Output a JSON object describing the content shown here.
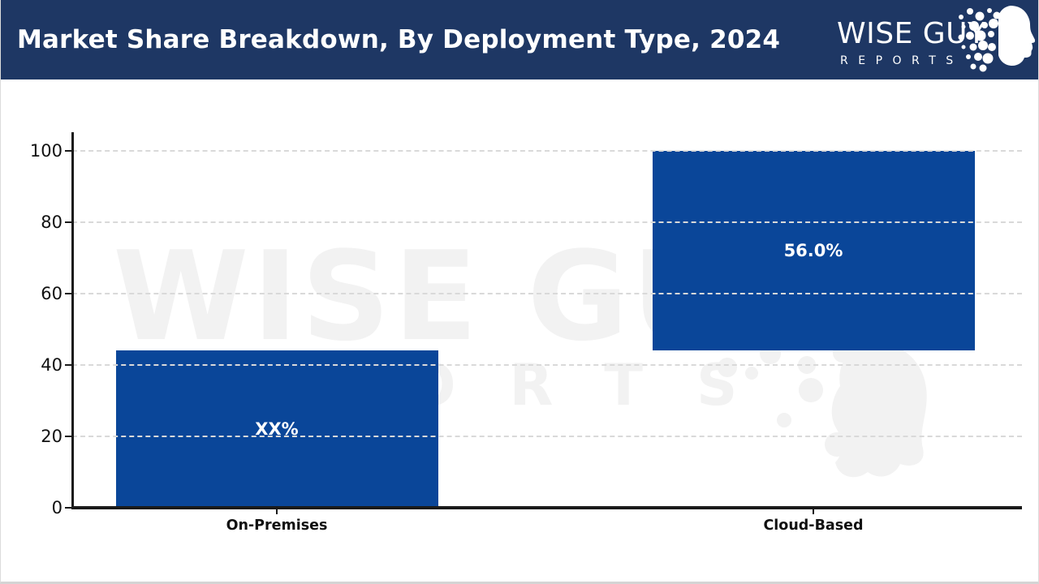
{
  "header": {
    "title": "Market Share Breakdown, By Deployment Type, 2024",
    "logo": {
      "line1": "WISE GUY",
      "line2": "REPORTS"
    }
  },
  "watermark": {
    "line1": "WISE GUY",
    "line2": "REPORTS"
  },
  "chart_data": {
    "type": "bar",
    "subtype": "floating-waterfall",
    "title": "Market Share Breakdown, By Deployment Type, 2024",
    "categories": [
      "On-Premises",
      "Cloud-Based"
    ],
    "series": [
      {
        "name": "On-Premises",
        "start": 0,
        "end": 44,
        "label": "XX%"
      },
      {
        "name": "Cloud-Based",
        "start": 44,
        "end": 100,
        "label": "56.0%"
      }
    ],
    "ylim": [
      0,
      105
    ],
    "yticks": [
      0,
      20,
      40,
      60,
      80,
      100
    ],
    "xlabel": "",
    "ylabel": "",
    "grid": "horizontal-dashed",
    "legend": "none"
  },
  "colors": {
    "header_bg": "#1e3764",
    "bar": "#0a4699",
    "bar_label": "#ffffff",
    "grid": "#d9d9d9",
    "axis": "#1a1a1a",
    "watermark": "#f2f2f2"
  }
}
